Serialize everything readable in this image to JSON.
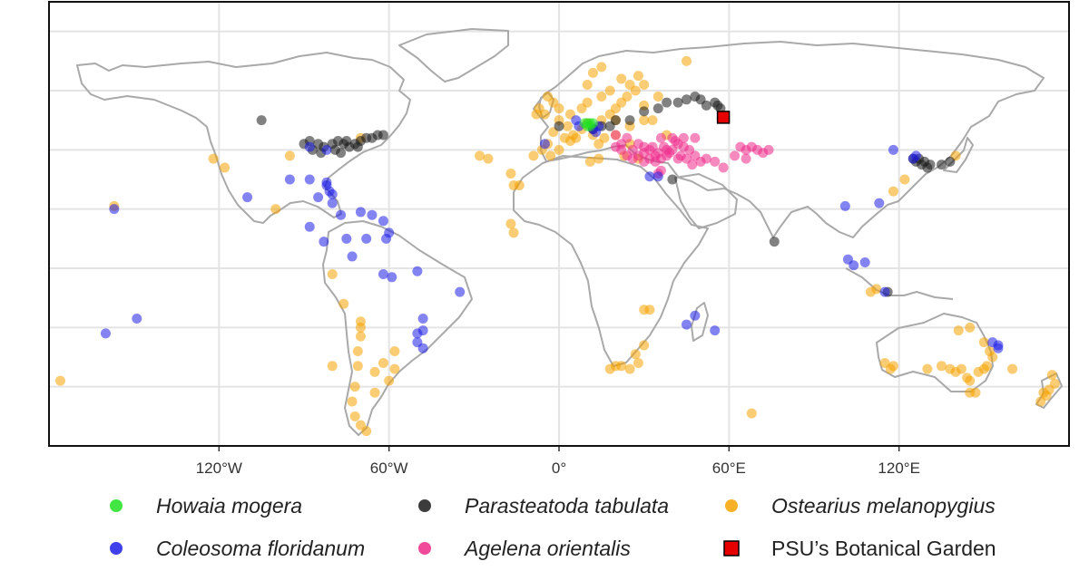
{
  "chart_data": {
    "type": "scatter",
    "title": "",
    "xlabel": "",
    "ylabel": "",
    "xlim": [
      -180,
      180
    ],
    "ylim": [
      -60,
      90
    ],
    "grid": true,
    "legend_position": "bottom",
    "x_ticks": [
      {
        "value": -120,
        "label": "120°W"
      },
      {
        "value": -60,
        "label": "60°W"
      },
      {
        "value": 0,
        "label": "0°"
      },
      {
        "value": 60,
        "label": "60°E"
      },
      {
        "value": 120,
        "label": "120°E"
      }
    ],
    "legend": [
      {
        "name": "Howaia mogera",
        "shape": "circle",
        "color": "#22e022"
      },
      {
        "name": "Parasteatoda tabulata",
        "shape": "circle",
        "color": "#1a1a1a"
      },
      {
        "name": "Ostearius melanopygius",
        "shape": "circle",
        "color": "#f5a300"
      },
      {
        "name": "Coleosoma floridanum",
        "shape": "circle",
        "color": "#1e1ee6"
      },
      {
        "name": "Agelena orientalis",
        "shape": "circle",
        "color": "#ef2a8a"
      },
      {
        "name": "PSU’s Botanical Garden",
        "shape": "square",
        "color": "#e60000"
      }
    ],
    "series": [
      {
        "name": "Ostearius melanopygius",
        "color": "#f5a300",
        "points": [
          [
            -5,
            52
          ],
          [
            0,
            50
          ],
          [
            3,
            48
          ],
          [
            -2,
            46
          ],
          [
            5,
            45
          ],
          [
            8,
            47
          ],
          [
            10,
            49
          ],
          [
            2,
            44
          ],
          [
            -4,
            42
          ],
          [
            -6,
            40
          ],
          [
            -3,
            38
          ],
          [
            0,
            40
          ],
          [
            4,
            43
          ],
          [
            6,
            44
          ],
          [
            12,
            45
          ],
          [
            14,
            42
          ],
          [
            16,
            44
          ],
          [
            12,
            47
          ],
          [
            15,
            50
          ],
          [
            18,
            52
          ],
          [
            20,
            54
          ],
          [
            22,
            56
          ],
          [
            24,
            58
          ],
          [
            27,
            60
          ],
          [
            25,
            62
          ],
          [
            18,
            60
          ],
          [
            15,
            58
          ],
          [
            10,
            56
          ],
          [
            8,
            54
          ],
          [
            4,
            52
          ],
          [
            0,
            54
          ],
          [
            -2,
            56
          ],
          [
            -4,
            58
          ],
          [
            -7,
            54
          ],
          [
            -8,
            52
          ],
          [
            20,
            50
          ],
          [
            25,
            48
          ],
          [
            30,
            55
          ],
          [
            35,
            58
          ],
          [
            28,
            65
          ],
          [
            22,
            64
          ],
          [
            30,
            62
          ],
          [
            20,
            45
          ],
          [
            25,
            42
          ],
          [
            -9,
            38
          ],
          [
            -16,
            28
          ],
          [
            -14,
            28
          ],
          [
            -17,
            32
          ],
          [
            -25,
            37
          ],
          [
            -28,
            38
          ],
          [
            -16,
            12
          ],
          [
            -17,
            15
          ],
          [
            14,
            37
          ],
          [
            11,
            36
          ],
          [
            23,
            38
          ],
          [
            28,
            37
          ],
          [
            30,
            50
          ],
          [
            33,
            50
          ],
          [
            38,
            45
          ],
          [
            -95,
            38
          ],
          [
            -122,
            37
          ],
          [
            -118,
            34
          ],
          [
            -70,
            44
          ],
          [
            -157,
            21
          ],
          [
            -100,
            20
          ],
          [
            -80,
            -2
          ],
          [
            -76,
            -12
          ],
          [
            -70,
            -18
          ],
          [
            -70,
            -23
          ],
          [
            -71,
            -33
          ],
          [
            -72,
            -40
          ],
          [
            -73,
            -45
          ],
          [
            -72,
            -50
          ],
          [
            -70,
            -53
          ],
          [
            -68,
            -55
          ],
          [
            -65,
            -42
          ],
          [
            -65,
            -35
          ],
          [
            -60,
            -38
          ],
          [
            -58,
            -34
          ],
          [
            -80,
            -33
          ],
          [
            -62,
            -32
          ],
          [
            -58,
            -28
          ],
          [
            -176,
            -38
          ],
          [
            -70,
            -20
          ],
          [
            -71,
            -28
          ],
          [
            18,
            -34
          ],
          [
            20,
            -33
          ],
          [
            25,
            -34
          ],
          [
            28,
            -32
          ],
          [
            30,
            -26
          ],
          [
            27,
            -29
          ],
          [
            22,
            -33
          ],
          [
            30,
            -14
          ],
          [
            32,
            -14
          ],
          [
            115,
            -32
          ],
          [
            117,
            -34
          ],
          [
            118,
            -33
          ],
          [
            130,
            -34
          ],
          [
            135,
            -33
          ],
          [
            138,
            -34
          ],
          [
            140,
            -35
          ],
          [
            142,
            -34
          ],
          [
            144,
            -37
          ],
          [
            145,
            -38
          ],
          [
            148,
            -35
          ],
          [
            150,
            -34
          ],
          [
            151,
            -33
          ],
          [
            152,
            -28
          ],
          [
            153,
            -30
          ],
          [
            145,
            -42
          ],
          [
            147,
            -42
          ],
          [
            150,
            -25
          ],
          [
            141,
            -21
          ],
          [
            174,
            -36
          ],
          [
            175,
            -39
          ],
          [
            172,
            -43
          ],
          [
            170,
            -45
          ],
          [
            173,
            -41
          ],
          [
            171,
            -42
          ],
          [
            110,
            -8
          ],
          [
            112,
            -7
          ],
          [
            145,
            -20
          ],
          [
            160,
            -34
          ],
          [
            68,
            -49
          ],
          [
            140,
            38
          ],
          [
            122,
            30
          ],
          [
            118,
            26
          ],
          [
            45,
            70
          ],
          [
            12,
            66
          ],
          [
            10,
            62
          ],
          [
            15,
            68
          ]
        ]
      },
      {
        "name": "Agelena orientalis",
        "color": "#ef2a8a",
        "points": [
          [
            20,
            45
          ],
          [
            22,
            42
          ],
          [
            24,
            44
          ],
          [
            26,
            40
          ],
          [
            28,
            42
          ],
          [
            30,
            41
          ],
          [
            32,
            40
          ],
          [
            34,
            38
          ],
          [
            36,
            37
          ],
          [
            38,
            38
          ],
          [
            40,
            40
          ],
          [
            42,
            42
          ],
          [
            44,
            41
          ],
          [
            46,
            40
          ],
          [
            48,
            38
          ],
          [
            50,
            36
          ],
          [
            52,
            37
          ],
          [
            24,
            38
          ],
          [
            26,
            37
          ],
          [
            30,
            39
          ],
          [
            33,
            41
          ],
          [
            35,
            39
          ],
          [
            37,
            41
          ],
          [
            39,
            39
          ],
          [
            41,
            43
          ],
          [
            43,
            38
          ],
          [
            45,
            37
          ],
          [
            47,
            35
          ],
          [
            28,
            38
          ],
          [
            30,
            36
          ],
          [
            32,
            37
          ],
          [
            34,
            36
          ],
          [
            22,
            40
          ],
          [
            20,
            41
          ],
          [
            36,
            44
          ],
          [
            40,
            44
          ],
          [
            44,
            44
          ],
          [
            48,
            44
          ],
          [
            55,
            36
          ],
          [
            58,
            34
          ],
          [
            62,
            38
          ],
          [
            66,
            40
          ],
          [
            68,
            41
          ],
          [
            70,
            40
          ],
          [
            72,
            39
          ],
          [
            74,
            40
          ],
          [
            64,
            41
          ],
          [
            66,
            37
          ],
          [
            35,
            32
          ],
          [
            36,
            33
          ],
          [
            38,
            40
          ],
          [
            42,
            37
          ]
        ]
      },
      {
        "name": "Parasteatoda tabulata",
        "color": "#1a1a1a",
        "points": [
          [
            -90,
            42
          ],
          [
            -88,
            43
          ],
          [
            -85,
            42
          ],
          [
            -83,
            41
          ],
          [
            -80,
            42
          ],
          [
            -78,
            43
          ],
          [
            -76,
            42
          ],
          [
            -74,
            41
          ],
          [
            -72,
            42
          ],
          [
            -70,
            43
          ],
          [
            -68,
            44
          ],
          [
            -66,
            44
          ],
          [
            -64,
            45
          ],
          [
            -62,
            45
          ],
          [
            -87,
            40
          ],
          [
            -84,
            39
          ],
          [
            -79,
            40
          ],
          [
            -77,
            39
          ],
          [
            -75,
            43
          ],
          [
            -71,
            41
          ],
          [
            -105,
            50
          ],
          [
            12,
            47
          ],
          [
            15,
            48
          ],
          [
            18,
            48
          ],
          [
            20,
            50
          ],
          [
            25,
            50
          ],
          [
            30,
            53
          ],
          [
            35,
            54
          ],
          [
            38,
            56
          ],
          [
            42,
            56
          ],
          [
            45,
            57
          ],
          [
            48,
            58
          ],
          [
            50,
            57
          ],
          [
            52,
            55
          ],
          [
            55,
            56
          ],
          [
            56,
            55
          ],
          [
            57,
            54
          ],
          [
            126,
            36
          ],
          [
            127,
            37
          ],
          [
            128,
            35
          ],
          [
            129,
            36
          ],
          [
            130,
            34
          ],
          [
            131,
            35
          ],
          [
            135,
            35
          ],
          [
            138,
            36
          ],
          [
            125,
            37
          ],
          [
            116,
            -8
          ],
          [
            76,
            9
          ],
          [
            40,
            30
          ],
          [
            0,
            48
          ]
        ]
      },
      {
        "name": "Coleosoma floridanum",
        "color": "#1e1ee6",
        "points": [
          [
            -88,
            41
          ],
          [
            -82,
            40
          ],
          [
            -82,
            28
          ],
          [
            -81,
            26
          ],
          [
            -80,
            25
          ],
          [
            -82,
            29
          ],
          [
            -95,
            30
          ],
          [
            -88,
            30
          ],
          [
            -85,
            24
          ],
          [
            -80,
            22
          ],
          [
            -77,
            18
          ],
          [
            -70,
            19
          ],
          [
            -66,
            18
          ],
          [
            -62,
            16
          ],
          [
            -61,
            10
          ],
          [
            -60,
            12
          ],
          [
            -73,
            4
          ],
          [
            -75,
            10
          ],
          [
            -88,
            14
          ],
          [
            -83,
            9
          ],
          [
            -110,
            24
          ],
          [
            -157,
            20
          ],
          [
            -149,
            -17
          ],
          [
            -160,
            -22
          ],
          [
            -62,
            -2
          ],
          [
            -50,
            -1
          ],
          [
            -35,
            -8
          ],
          [
            -48,
            -17
          ],
          [
            -48,
            -21
          ],
          [
            -50,
            -22
          ],
          [
            -50,
            -25
          ],
          [
            -48,
            -27
          ],
          [
            -59,
            -3
          ],
          [
            -68,
            10
          ],
          [
            32,
            31
          ],
          [
            35,
            31
          ],
          [
            -5,
            42
          ],
          [
            6,
            50
          ],
          [
            7,
            48
          ],
          [
            12,
            47
          ],
          [
            14,
            48
          ],
          [
            13,
            46
          ],
          [
            102,
            3
          ],
          [
            104,
            1
          ],
          [
            108,
            2
          ],
          [
            113,
            22
          ],
          [
            115,
            -8
          ],
          [
            101,
            21
          ],
          [
            118,
            40
          ],
          [
            155,
            -26
          ],
          [
            155,
            -27
          ],
          [
            153,
            -25
          ],
          [
            45,
            -19
          ],
          [
            48,
            -16
          ],
          [
            55,
            -21
          ],
          [
            125,
            37
          ],
          [
            126,
            38
          ]
        ]
      },
      {
        "name": "Howaia mogera",
        "color": "#22e022",
        "points": [
          [
            9,
            49
          ],
          [
            10,
            49
          ],
          [
            11,
            48
          ],
          [
            12,
            49
          ],
          [
            10,
            48
          ],
          [
            11,
            49
          ]
        ]
      }
    ],
    "highlight": {
      "name": "PSU’s Botanical Garden",
      "lon": 58,
      "lat": 51,
      "color": "#e60000"
    }
  }
}
